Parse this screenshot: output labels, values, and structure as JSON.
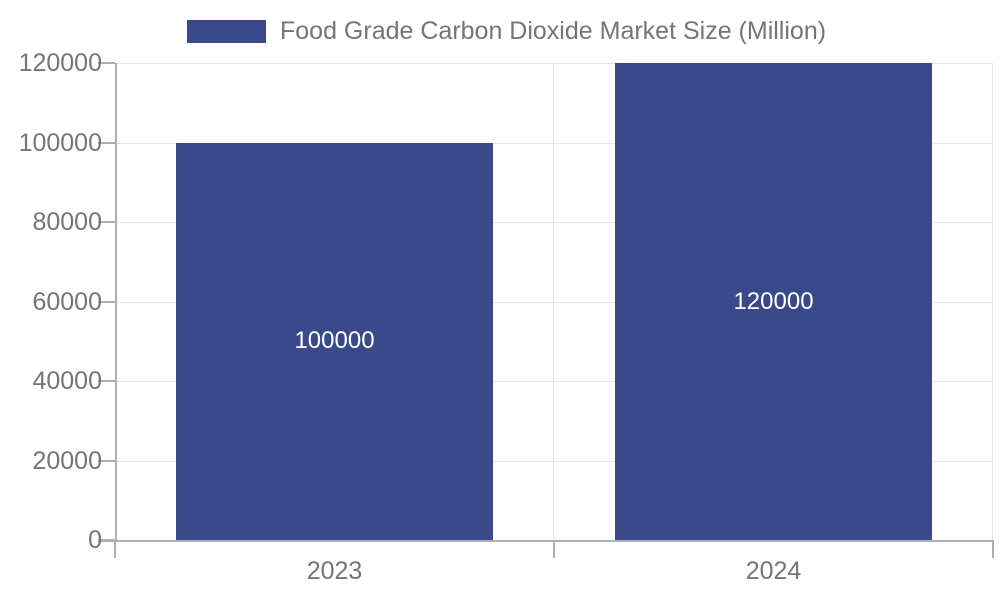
{
  "chart_data": {
    "type": "bar",
    "title": "Food Grade Carbon Dioxide Market Size (Million)",
    "categories": [
      "2023",
      "2024"
    ],
    "values": [
      100000,
      120000
    ],
    "bar_value_labels": [
      "100000",
      "120000"
    ],
    "xlabel": "",
    "ylabel": "",
    "ylim": [
      0,
      120000
    ],
    "yticks": [
      0,
      20000,
      40000,
      60000,
      80000,
      100000,
      120000
    ],
    "ytick_labels": [
      "0",
      "20000",
      "40000",
      "60000",
      "80000",
      "100000",
      "120000"
    ],
    "grid": "horizontal gridlines at each ytick plus vertical category-boundary lines",
    "legend_position": "top",
    "bar_color": "#39498A",
    "value_label_color": "#FFFFFF"
  },
  "legend": {
    "label": "Food Grade Carbon Dioxide Market Size (Million)",
    "swatch_color": "#39498A"
  },
  "style": {
    "background": "#FFFFFF",
    "text_color": "#757575",
    "axis_color": "#AEAEB3",
    "grid_color": "#E5E5E5"
  }
}
